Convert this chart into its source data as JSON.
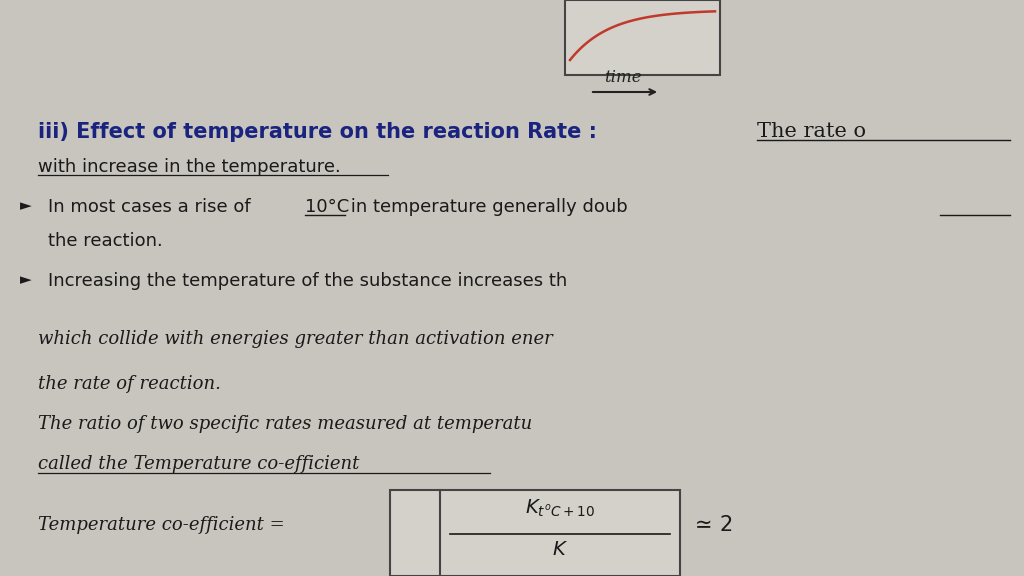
{
  "background_color": "#c8c4be",
  "page_color": "#dedad4",
  "title_bold": "iii) Effect of temperature on the reaction Rate :",
  "title_plain": "The rate o",
  "subtitle": "with increase in the temperature.",
  "bullet1_pre": "In most cases a rise of ",
  "bullet1_underline": "10°C",
  "bullet1_post": " in temperature generally doub",
  "bullet1_line2": "the reaction.",
  "bullet2": "Increasing the temperature of the substance increases th",
  "line3": "which collide with energies greater than activation ener",
  "line4": "the rate of reaction.",
  "line5": "The ratio of two specific rates measured at temperatu",
  "line6": "called the Temperature co-efficient",
  "formula_label": "Temperature co-efficient = ",
  "time_label": "time",
  "text_color_main": "#1a1a1a",
  "text_color_blue": "#1a237e",
  "box_border_color": "#555555"
}
